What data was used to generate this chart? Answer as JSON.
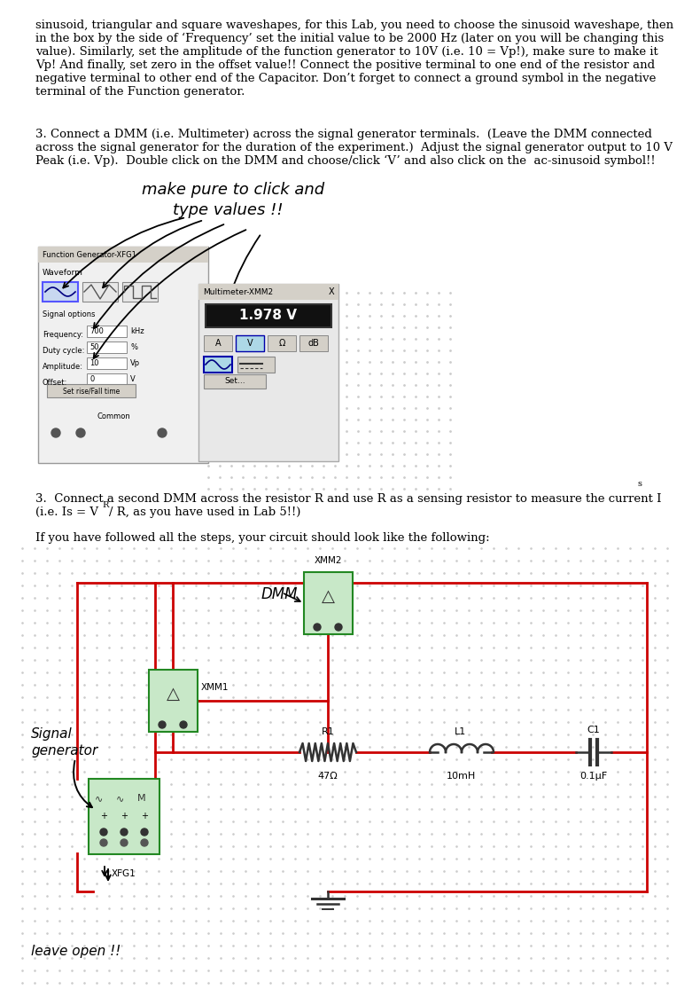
{
  "paragraph1": "sinusoid, triangular and square waveshapes, for this Lab, you need to choose the sinusoid waveshape, then\nin the box by the side of ‘Frequency’ set the initial value to be 2000 Hz (later on you will be changing this\nvalue). Similarly, set the amplitude of the function generator to 10V (i.e. 10 = Vp!), make sure to make it\nVp! And finally, set zero in the offset value!! Connect the positive terminal to one end of the resistor and\nnegative terminal to other end of the Capacitor. Don’t forget to connect a ground symbol in the negative\nterminal of the Function generator.",
  "paragraph2": "3. Connect a DMM (i.e. Multimeter) across the signal generator terminals.  (Leave the DMM connected\nacross the signal generator for the duration of the experiment.)  Adjust the signal generator output to 10 V\nPeak (i.e. Vp).  Double click on the DMM and choose/click ‘V’ and also click on the  ac-sinusoid symbol!!",
  "paragraph3": "3.  Connect a second DMM across the resistor R and use R as a sensing resistor to measure the current Iₛ.\n(i.e. Is = Vᴵ/ R, as you have used in Lab 5!!)",
  "paragraph4": "If you have followed all the steps, your circuit should look like the following:",
  "dmm_reading": "1.978 V",
  "bg_color": "#ffffff",
  "text_color": "#000000",
  "wire_color": "#cc0000",
  "grid_color": "#cccccc",
  "green_fill": "#c8e8c8",
  "green_edge": "#228822"
}
